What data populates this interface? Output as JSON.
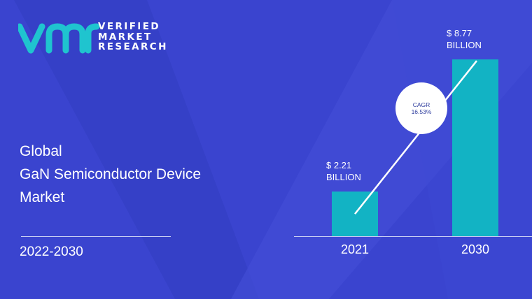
{
  "brand": {
    "lines": [
      "VERIFIED",
      "MARKET",
      "RESEARCH"
    ]
  },
  "title": {
    "line1": "Global",
    "line2": "GaN Semiconductor Device",
    "line3": "Market"
  },
  "period": "2022-2030",
  "colors": {
    "background": "#3c45d1",
    "bar": "#12b3c4",
    "logo_teal": "#1fc4cf"
  },
  "cagr": {
    "label": "CAGR",
    "value": "16.53%"
  },
  "chart_data": {
    "type": "bar",
    "categories": [
      "2021",
      "2030"
    ],
    "values": [
      2.21,
      8.77
    ],
    "value_labels": [
      {
        "line1": "$ 2.21",
        "line2": "BILLION"
      },
      {
        "line1": "$ 8.77",
        "line2": "BILLION"
      }
    ],
    "title": "",
    "xlabel": "",
    "ylabel": "",
    "ylim": [
      0,
      9.5
    ]
  }
}
